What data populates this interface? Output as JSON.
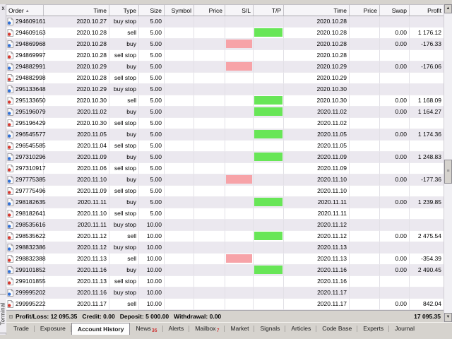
{
  "panel": {
    "name": "terminal-panel",
    "terminal_label": "Terminal",
    "close_glyph": "x"
  },
  "icons": {
    "sort_ascending": "▲",
    "scroll_up": "▲",
    "scroll_down": "▼",
    "thumb_grip": "≡"
  },
  "colors": {
    "tp_hit_green": "#68e657",
    "sl_hit_pink": "#f7a3a8",
    "buy_icon_arrow": "#2e6fd8",
    "sell_icon_arrow": "#d8372e",
    "shaded_row": "#ebe8ef"
  },
  "table": {
    "columns": [
      {
        "key": "order",
        "label": "Order",
        "align": "left",
        "sorted": true
      },
      {
        "key": "time",
        "label": "Time",
        "align": "right"
      },
      {
        "key": "type",
        "label": "Type",
        "align": "right"
      },
      {
        "key": "size",
        "label": "Size",
        "align": "right"
      },
      {
        "key": "symbol",
        "label": "Symbol",
        "align": "right"
      },
      {
        "key": "price",
        "label": "Price",
        "align": "right"
      },
      {
        "key": "sl",
        "label": "S/L",
        "align": "right"
      },
      {
        "key": "tp",
        "label": "T/P",
        "align": "right"
      },
      {
        "key": "time2",
        "label": "Time",
        "align": "right"
      },
      {
        "key": "price2",
        "label": "Price",
        "align": "right"
      },
      {
        "key": "swap",
        "label": "Swap",
        "align": "right"
      },
      {
        "key": "profit",
        "label": "Profit",
        "align": "right"
      }
    ],
    "rows": [
      {
        "order": "294609161",
        "dir": "buy",
        "time": "2020.10.27",
        "type": "buy stop",
        "size": "5.00",
        "symbol": "",
        "price": "",
        "sl": "",
        "tp": "",
        "sl_hit": false,
        "tp_hit": false,
        "time2": "2020.10.28",
        "price2": "",
        "swap": "",
        "profit": ""
      },
      {
        "order": "294609163",
        "dir": "sell",
        "time": "2020.10.28",
        "type": "sell",
        "size": "5.00",
        "symbol": "",
        "price": "",
        "sl": "",
        "tp": "",
        "sl_hit": false,
        "tp_hit": true,
        "time2": "2020.10.28",
        "price2": "",
        "swap": "0.00",
        "profit": "1 176.12"
      },
      {
        "order": "294869968",
        "dir": "buy",
        "time": "2020.10.28",
        "type": "buy",
        "size": "5.00",
        "symbol": "",
        "price": "",
        "sl": "",
        "tp": "",
        "sl_hit": true,
        "tp_hit": false,
        "time2": "2020.10.28",
        "price2": "",
        "swap": "0.00",
        "profit": "-176.33"
      },
      {
        "order": "294869997",
        "dir": "sell",
        "time": "2020.10.28",
        "type": "sell stop",
        "size": "5.00",
        "symbol": "",
        "price": "",
        "sl": "",
        "tp": "",
        "sl_hit": false,
        "tp_hit": false,
        "time2": "2020.10.28",
        "price2": "",
        "swap": "",
        "profit": ""
      },
      {
        "order": "294882991",
        "dir": "buy",
        "time": "2020.10.29",
        "type": "buy",
        "size": "5.00",
        "symbol": "",
        "price": "",
        "sl": "",
        "tp": "",
        "sl_hit": true,
        "tp_hit": false,
        "time2": "2020.10.29",
        "price2": "",
        "swap": "0.00",
        "profit": "-176.06"
      },
      {
        "order": "294882998",
        "dir": "sell",
        "time": "2020.10.28",
        "type": "sell stop",
        "size": "5.00",
        "symbol": "",
        "price": "",
        "sl": "",
        "tp": "",
        "sl_hit": false,
        "tp_hit": false,
        "time2": "2020.10.29",
        "price2": "",
        "swap": "",
        "profit": ""
      },
      {
        "order": "295133648",
        "dir": "buy",
        "time": "2020.10.29",
        "type": "buy stop",
        "size": "5.00",
        "symbol": "",
        "price": "",
        "sl": "",
        "tp": "",
        "sl_hit": false,
        "tp_hit": false,
        "time2": "2020.10.30",
        "price2": "",
        "swap": "",
        "profit": ""
      },
      {
        "order": "295133650",
        "dir": "sell",
        "time": "2020.10.30",
        "type": "sell",
        "size": "5.00",
        "symbol": "",
        "price": "",
        "sl": "",
        "tp": "",
        "sl_hit": false,
        "tp_hit": true,
        "time2": "2020.10.30",
        "price2": "",
        "swap": "0.00",
        "profit": "1 168.09"
      },
      {
        "order": "295196079",
        "dir": "buy",
        "time": "2020.11.02",
        "type": "buy",
        "size": "5.00",
        "symbol": "",
        "price": "",
        "sl": "",
        "tp": "",
        "sl_hit": false,
        "tp_hit": true,
        "time2": "2020.11.02",
        "price2": "",
        "swap": "0.00",
        "profit": "1 164.27"
      },
      {
        "order": "295196429",
        "dir": "sell",
        "time": "2020.10.30",
        "type": "sell stop",
        "size": "5.00",
        "symbol": "",
        "price": "",
        "sl": "",
        "tp": "",
        "sl_hit": false,
        "tp_hit": false,
        "time2": "2020.11.02",
        "price2": "",
        "swap": "",
        "profit": ""
      },
      {
        "order": "296545577",
        "dir": "buy",
        "time": "2020.11.05",
        "type": "buy",
        "size": "5.00",
        "symbol": "",
        "price": "",
        "sl": "",
        "tp": "",
        "sl_hit": false,
        "tp_hit": true,
        "time2": "2020.11.05",
        "price2": "",
        "swap": "0.00",
        "profit": "1 174.36"
      },
      {
        "order": "296545585",
        "dir": "sell",
        "time": "2020.11.04",
        "type": "sell stop",
        "size": "5.00",
        "symbol": "",
        "price": "",
        "sl": "",
        "tp": "",
        "sl_hit": false,
        "tp_hit": false,
        "time2": "2020.11.05",
        "price2": "",
        "swap": "",
        "profit": ""
      },
      {
        "order": "297310296",
        "dir": "buy",
        "time": "2020.11.09",
        "type": "buy",
        "size": "5.00",
        "symbol": "",
        "price": "",
        "sl": "",
        "tp": "",
        "sl_hit": false,
        "tp_hit": true,
        "time2": "2020.11.09",
        "price2": "",
        "swap": "0.00",
        "profit": "1 248.83"
      },
      {
        "order": "297310917",
        "dir": "sell",
        "time": "2020.11.06",
        "type": "sell stop",
        "size": "5.00",
        "symbol": "",
        "price": "",
        "sl": "",
        "tp": "",
        "sl_hit": false,
        "tp_hit": false,
        "time2": "2020.11.09",
        "price2": "",
        "swap": "",
        "profit": ""
      },
      {
        "order": "297775385",
        "dir": "buy",
        "time": "2020.11.10",
        "type": "buy",
        "size": "5.00",
        "symbol": "",
        "price": "",
        "sl": "",
        "tp": "",
        "sl_hit": true,
        "tp_hit": false,
        "time2": "2020.11.10",
        "price2": "",
        "swap": "0.00",
        "profit": "-177.36"
      },
      {
        "order": "297775496",
        "dir": "sell",
        "time": "2020.11.09",
        "type": "sell stop",
        "size": "5.00",
        "symbol": "",
        "price": "",
        "sl": "",
        "tp": "",
        "sl_hit": false,
        "tp_hit": false,
        "time2": "2020.11.10",
        "price2": "",
        "swap": "",
        "profit": ""
      },
      {
        "order": "298182635",
        "dir": "buy",
        "time": "2020.11.11",
        "type": "buy",
        "size": "5.00",
        "symbol": "",
        "price": "",
        "sl": "",
        "tp": "",
        "sl_hit": false,
        "tp_hit": true,
        "time2": "2020.11.11",
        "price2": "",
        "swap": "0.00",
        "profit": "1 239.85"
      },
      {
        "order": "298182641",
        "dir": "sell",
        "time": "2020.11.10",
        "type": "sell stop",
        "size": "5.00",
        "symbol": "",
        "price": "",
        "sl": "",
        "tp": "",
        "sl_hit": false,
        "tp_hit": false,
        "time2": "2020.11.11",
        "price2": "",
        "swap": "",
        "profit": ""
      },
      {
        "order": "298535616",
        "dir": "buy",
        "time": "2020.11.11",
        "type": "buy stop",
        "size": "10.00",
        "symbol": "",
        "price": "",
        "sl": "",
        "tp": "",
        "sl_hit": false,
        "tp_hit": false,
        "time2": "2020.11.12",
        "price2": "",
        "swap": "",
        "profit": ""
      },
      {
        "order": "298535622",
        "dir": "sell",
        "time": "2020.11.12",
        "type": "sell",
        "size": "10.00",
        "symbol": "",
        "price": "",
        "sl": "",
        "tp": "",
        "sl_hit": false,
        "tp_hit": true,
        "time2": "2020.11.12",
        "price2": "",
        "swap": "0.00",
        "profit": "2 475.54"
      },
      {
        "order": "298832386",
        "dir": "buy",
        "time": "2020.11.12",
        "type": "buy stop",
        "size": "10.00",
        "symbol": "",
        "price": "",
        "sl": "",
        "tp": "",
        "sl_hit": false,
        "tp_hit": false,
        "time2": "2020.11.13",
        "price2": "",
        "swap": "",
        "profit": ""
      },
      {
        "order": "298832388",
        "dir": "sell",
        "time": "2020.11.13",
        "type": "sell",
        "size": "10.00",
        "symbol": "",
        "price": "",
        "sl": "",
        "tp": "",
        "sl_hit": true,
        "tp_hit": false,
        "time2": "2020.11.13",
        "price2": "",
        "swap": "0.00",
        "profit": "-354.39"
      },
      {
        "order": "299101852",
        "dir": "buy",
        "time": "2020.11.16",
        "type": "buy",
        "size": "10.00",
        "symbol": "",
        "price": "",
        "sl": "",
        "tp": "",
        "sl_hit": false,
        "tp_hit": true,
        "time2": "2020.11.16",
        "price2": "",
        "swap": "0.00",
        "profit": "2 490.45"
      },
      {
        "order": "299101855",
        "dir": "sell",
        "time": "2020.11.13",
        "type": "sell stop",
        "size": "10.00",
        "symbol": "",
        "price": "",
        "sl": "",
        "tp": "",
        "sl_hit": false,
        "tp_hit": false,
        "time2": "2020.11.16",
        "price2": "",
        "swap": "",
        "profit": ""
      },
      {
        "order": "299995202",
        "dir": "buy",
        "time": "2020.11.16",
        "type": "buy stop",
        "size": "10.00",
        "symbol": "",
        "price": "",
        "sl": "",
        "tp": "",
        "sl_hit": false,
        "tp_hit": false,
        "time2": "2020.11.17",
        "price2": "",
        "swap": "",
        "profit": ""
      },
      {
        "order": "299995222",
        "dir": "sell",
        "time": "2020.11.17",
        "type": "sell",
        "size": "10.00",
        "symbol": "",
        "price": "",
        "sl": "",
        "tp": "",
        "sl_hit": false,
        "tp_hit": false,
        "time2": "2020.11.17",
        "price2": "",
        "swap": "0.00",
        "profit": "842.04"
      }
    ]
  },
  "summary": {
    "segments": [
      {
        "label": "Profit/Loss:",
        "value": "12 095.35"
      },
      {
        "label": "Credit:",
        "value": "0.00"
      },
      {
        "label": "Deposit:",
        "value": "5 000.00"
      },
      {
        "label": "Withdrawal:",
        "value": "0.00"
      }
    ],
    "total": "17 095.35"
  },
  "tabs": [
    {
      "label": "Trade",
      "active": false,
      "badge": ""
    },
    {
      "label": "Exposure",
      "active": false,
      "badge": ""
    },
    {
      "label": "Account History",
      "active": true,
      "badge": ""
    },
    {
      "label": "News",
      "active": false,
      "badge": "36"
    },
    {
      "label": "Alerts",
      "active": false,
      "badge": ""
    },
    {
      "label": "Mailbox",
      "active": false,
      "badge": "7"
    },
    {
      "label": "Market",
      "active": false,
      "badge": ""
    },
    {
      "label": "Signals",
      "active": false,
      "badge": ""
    },
    {
      "label": "Articles",
      "active": false,
      "badge": ""
    },
    {
      "label": "Code Base",
      "active": false,
      "badge": ""
    },
    {
      "label": "Experts",
      "active": false,
      "badge": ""
    },
    {
      "label": "Journal",
      "active": false,
      "badge": ""
    }
  ]
}
